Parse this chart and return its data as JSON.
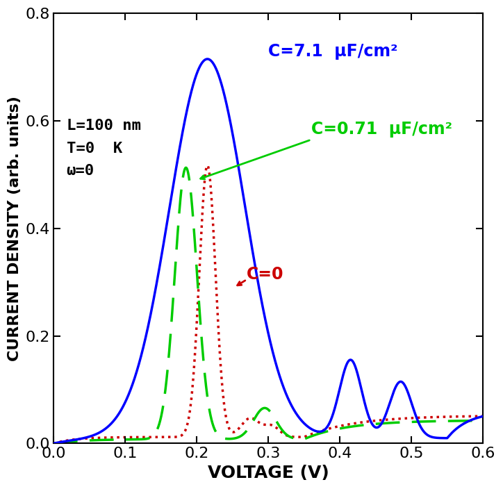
{
  "title": "",
  "xlabel": "VOLTAGE (V)",
  "ylabel": "CURRENT DENSITY (arb. units)",
  "xlim": [
    0.0,
    0.6
  ],
  "ylim": [
    0.0,
    0.8
  ],
  "xticks": [
    0.0,
    0.1,
    0.2,
    0.3,
    0.4,
    0.5,
    0.6
  ],
  "yticks": [
    0.0,
    0.2,
    0.4,
    0.6,
    0.8
  ],
  "annotation_text": "L=100 nm\nT=0  K\nω=0",
  "label_blue": "C=7.1  μF/cm²",
  "label_green": "C=0.71  μF/cm²",
  "label_red": "C=0",
  "color_blue": "#0000ff",
  "color_green": "#00cc00",
  "color_red": "#cc0000",
  "bg_color": "#ffffff",
  "figsize": [
    7.24,
    7.04
  ],
  "dpi": 100,
  "xlabel_fontsize": 18,
  "ylabel_fontsize": 16,
  "tick_fontsize": 16,
  "annotation_fontsize": 16,
  "label_fontsize": 17
}
